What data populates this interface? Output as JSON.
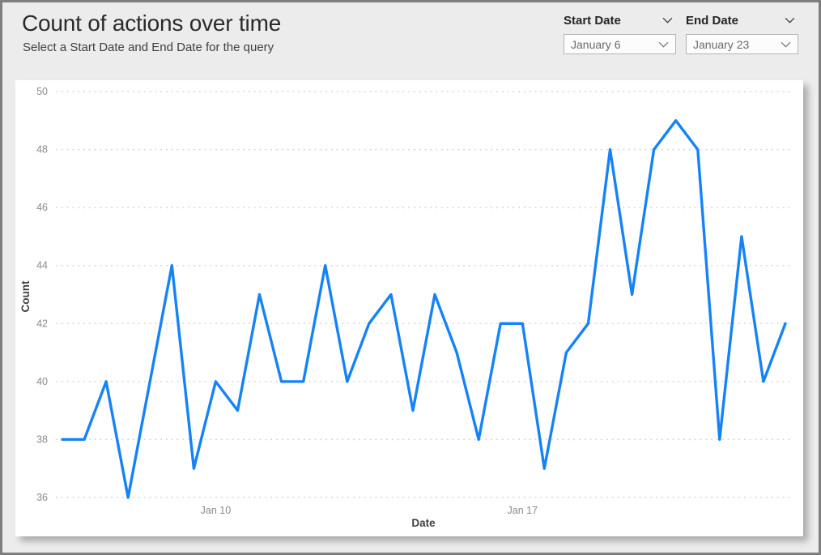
{
  "header": {
    "title": "Count of actions over time",
    "subtitle": "Select a Start Date and End Date for the query"
  },
  "slicers": [
    {
      "label": "Start Date",
      "value": "January 6"
    },
    {
      "label": "End Date",
      "value": "January 23"
    }
  ],
  "chart_data": {
    "type": "line",
    "title": "Count of actions over time",
    "xlabel": "Date",
    "ylabel": "Count",
    "ylim": [
      36,
      50
    ],
    "y_ticks": [
      36,
      38,
      40,
      42,
      44,
      46,
      48,
      50
    ],
    "x_ticks": [
      {
        "label": "Jan 10",
        "index": 7
      },
      {
        "label": "Jan 17",
        "index": 21
      }
    ],
    "grid": "horizontal-dotted",
    "legend": "none",
    "series": [
      {
        "name": "Count",
        "values": [
          38,
          38,
          40,
          36,
          40,
          44,
          37,
          40,
          39,
          43,
          40,
          40,
          44,
          40,
          42,
          43,
          39,
          43,
          41,
          38,
          42,
          42,
          37,
          41,
          42,
          48,
          43,
          48,
          49,
          48,
          38,
          45,
          40,
          42
        ]
      }
    ]
  },
  "colors": {
    "line": "#1583F7",
    "page_background": "#ececec",
    "card_background": "#ffffff",
    "frame_border": "#7e7e7e",
    "title_text": "#2b2b2b",
    "subtitle_text": "#3f3f3f",
    "axis_tick_text": "#8a8a8a",
    "axis_title_text": "#404040",
    "gridline": "#d4d4d4",
    "slicer_border": "#b5b5b5",
    "slicer_value_text": "#6b6b6b",
    "slicer_label_text": "#252423"
  }
}
